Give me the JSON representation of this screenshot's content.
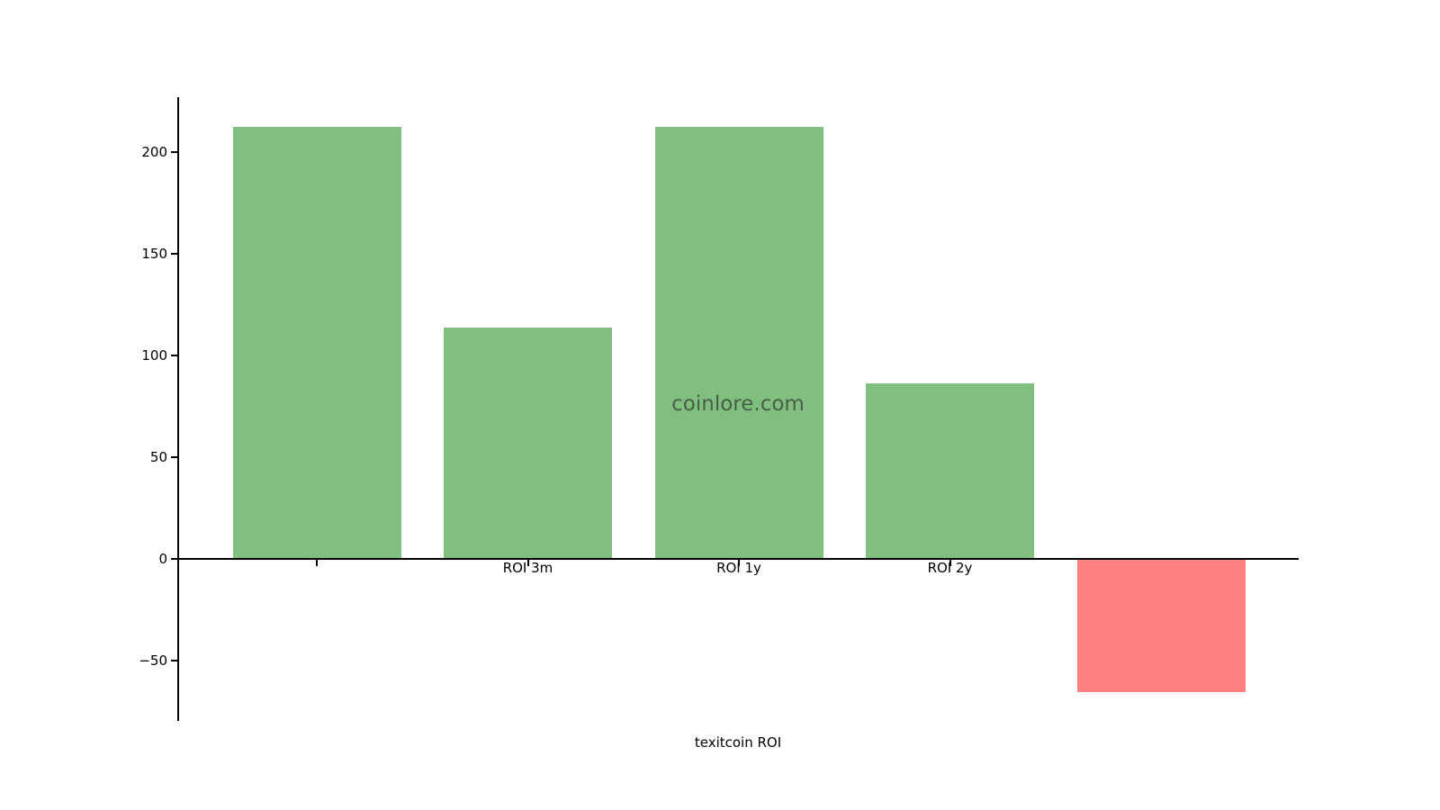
{
  "chart_data": {
    "type": "bar",
    "title": "",
    "categories": [
      "",
      "ROI 3m",
      "ROI 1y",
      "ROI 2y",
      ""
    ],
    "values": [
      212.8,
      114,
      212.8,
      86.3,
      -65.3
    ],
    "xlabel": "texitcoin ROI",
    "ylabel": "",
    "yticks": [
      200,
      150,
      100,
      50,
      0,
      -50
    ],
    "ylim": [
      -79.6,
      227.2
    ],
    "grid": false,
    "legend": null,
    "positive_color": "#80bf80",
    "negative_color": "#ff8080",
    "axis_color": "#000000",
    "watermark": "coinlore.com"
  }
}
